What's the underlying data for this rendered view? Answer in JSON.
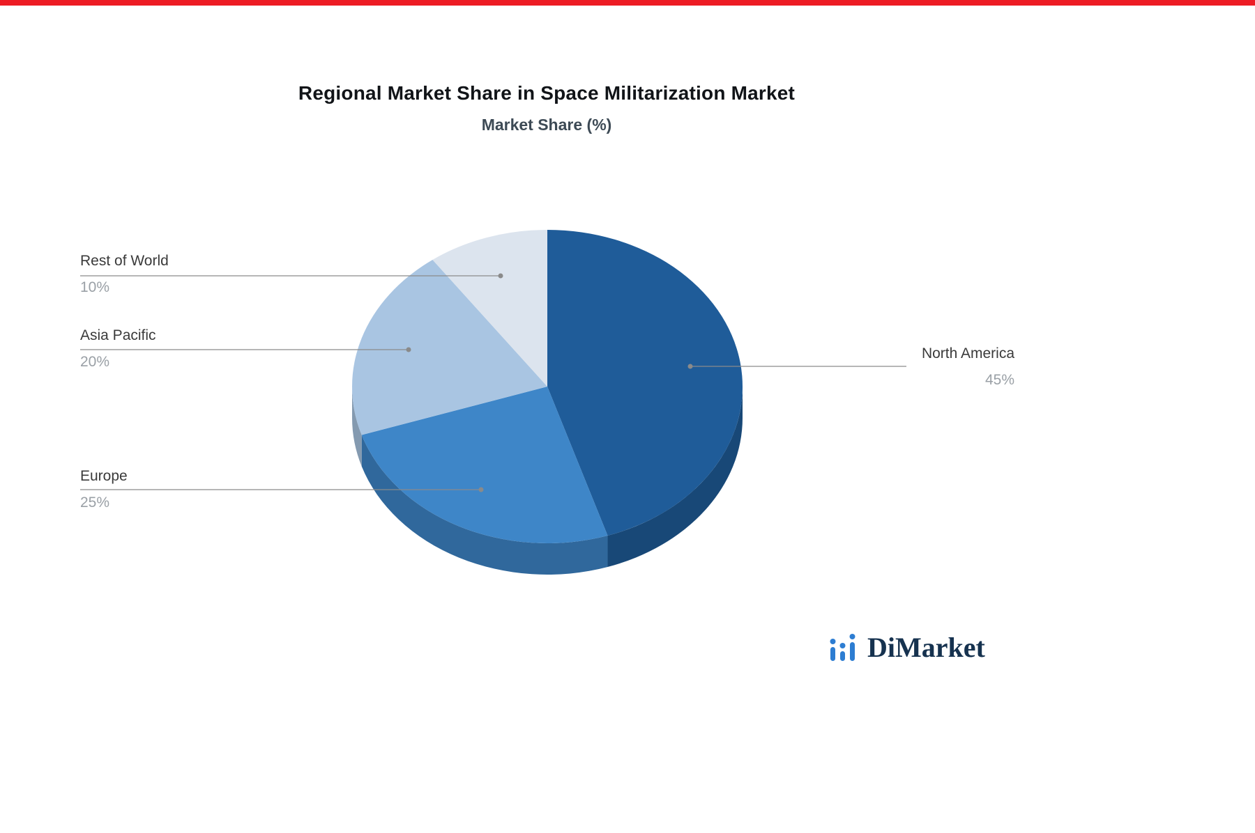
{
  "page": {
    "accent_bar_color": "#ed1c24",
    "background_color": "#ffffff"
  },
  "chart_data": {
    "type": "pie",
    "style": "3d",
    "title": "Regional Market Share in Space Militarization Market",
    "subtitle": "Market Share (%)",
    "unit": "%",
    "labels": [
      "North America",
      "Europe",
      "Asia Pacific",
      "Rest of World"
    ],
    "values": [
      45,
      25,
      20,
      10
    ],
    "value_labels": [
      "45%",
      "25%",
      "20%",
      "10%"
    ],
    "colors": [
      "#1f5c99",
      "#3e86c8",
      "#a9c5e2",
      "#dce4ee"
    ],
    "side_colors": [
      "#184877",
      "#30689c",
      "#849ab0",
      "#abb1ba"
    ],
    "start_angle_deg": 0,
    "direction": "clockwise",
    "legend_position": "none",
    "label_style": "callout-lines",
    "callout_line_color": "#8a8a8a",
    "label_color": "#3a3a3a",
    "value_color": "#9aa0a6"
  },
  "branding": {
    "logo_text": "DiMarket",
    "logo_text_color": "#16324f",
    "logo_icon": "bar-chart-icon",
    "logo_icon_color": "#2d7dd2"
  }
}
